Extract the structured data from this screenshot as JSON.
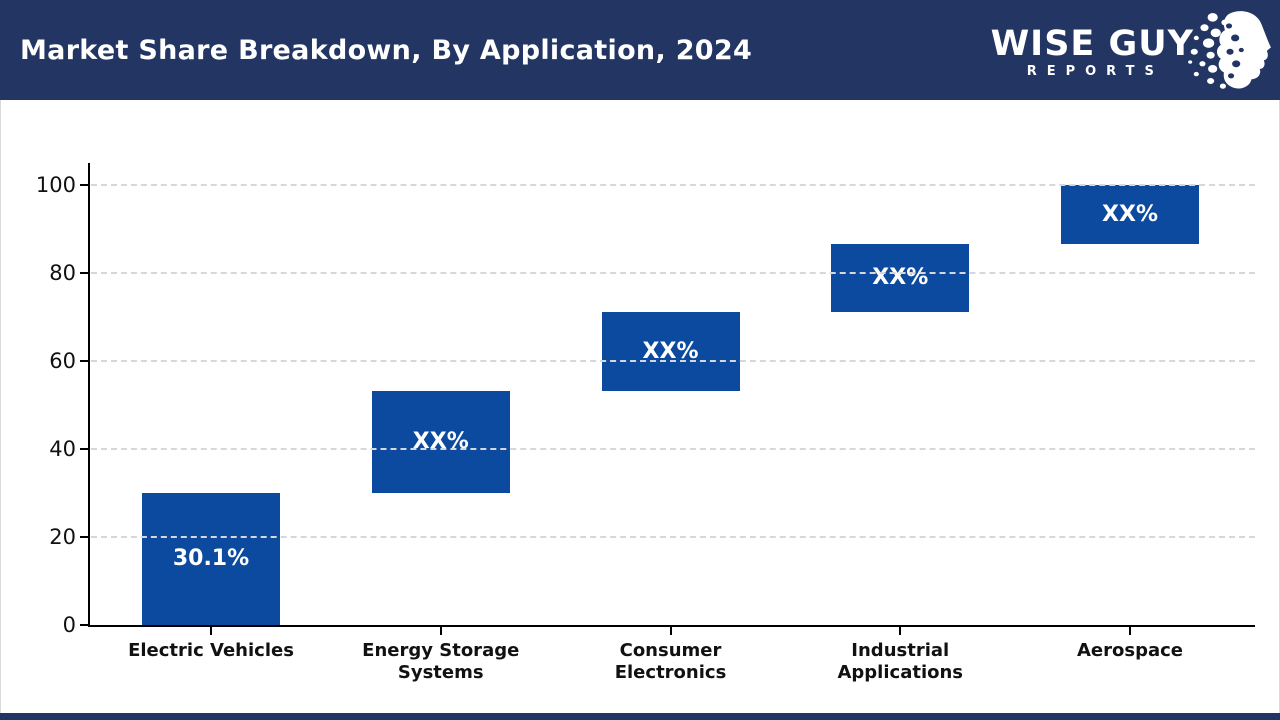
{
  "header": {
    "title": "Market Share Breakdown, By Application, 2024",
    "logo": {
      "wordmark": "WISE GUY",
      "subtext": "REPORTS"
    }
  },
  "watermark": {
    "wordmark": "WISE GUY",
    "subtext": "REPORTS"
  },
  "chart_data": {
    "type": "bar",
    "subtype": "waterfall",
    "title": "Market Share Breakdown, By Application, 2024",
    "categories": [
      "Electric Vehicles",
      "Energy Storage\nSystems",
      "Consumer\nElectronics",
      "Industrial\nApplications",
      "Aerospace"
    ],
    "segments": [
      {
        "category": "Electric Vehicles",
        "start": 0,
        "end": 30.1,
        "label": "30.1%"
      },
      {
        "category": "Energy Storage Systems",
        "start": 30.1,
        "end": 53.2,
        "label": "XX%"
      },
      {
        "category": "Consumer Electronics",
        "start": 53.2,
        "end": 71.2,
        "label": "XX%"
      },
      {
        "category": "Industrial Applications",
        "start": 71.2,
        "end": 86.7,
        "label": "XX%"
      },
      {
        "category": "Aerospace",
        "start": 86.7,
        "end": 100,
        "label": "XX%"
      }
    ],
    "ylim": [
      0,
      100
    ],
    "yticks": [
      0,
      20,
      40,
      60,
      80,
      100
    ],
    "xlabel": "",
    "ylabel": "",
    "grid": "horizontal-dashed",
    "legend": "none"
  },
  "colors": {
    "header_bg": "#223563",
    "footer_bg": "#223563",
    "bar": "#0b4a9f",
    "bar_label": "#ffffff",
    "grid": "#d5d7db",
    "axis": "#000000",
    "title_text": "#ffffff",
    "watermark": "#f0f1f4"
  }
}
